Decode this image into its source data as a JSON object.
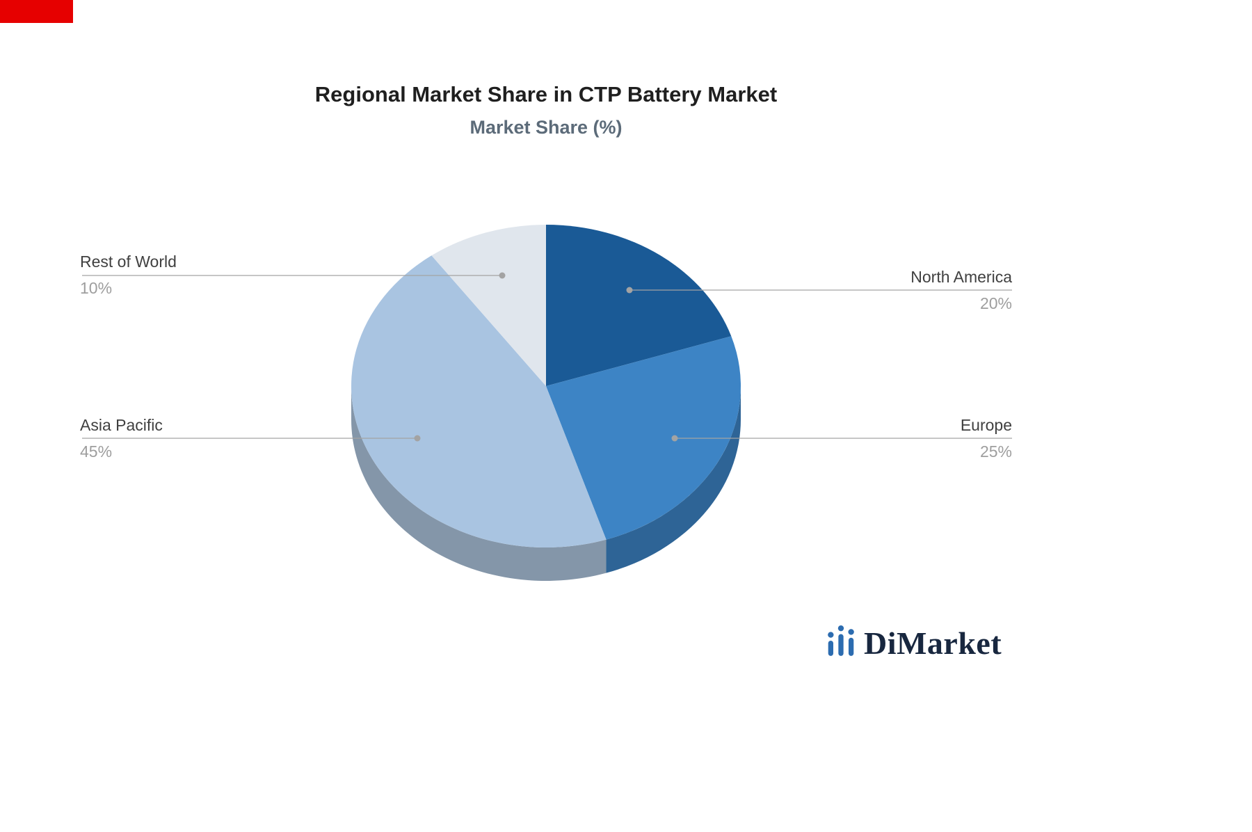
{
  "badge": {
    "color": "#e60000"
  },
  "chart_data": {
    "type": "pie",
    "title": "Regional Market Share in CTP Battery Market",
    "subtitle": "Market Share (%)",
    "unit": "%",
    "start_angle_deg": -90,
    "direction": "clockwise",
    "style": "3d-pie",
    "legend_position": "none",
    "slices": [
      {
        "label": "North America",
        "value": 20,
        "pct_label": "20%",
        "color": "#1a5a96",
        "side_color": "#134570"
      },
      {
        "label": "Europe",
        "value": 25,
        "pct_label": "25%",
        "color": "#3d84c5",
        "side_color": "#2e6496"
      },
      {
        "label": "Asia Pacific",
        "value": 45,
        "pct_label": "45%",
        "color": "#a9c4e1",
        "side_color": "#8496a9"
      },
      {
        "label": "Rest of World",
        "value": 10,
        "pct_label": "10%",
        "color": "#e0e6ed",
        "side_color": "#a8adb4"
      }
    ],
    "label_name_color": "#404040",
    "label_pct_color": "#9e9e9e",
    "leader_line_color": "#a3a3a3"
  },
  "logo": {
    "text": "DiMarket",
    "text_color": "#18273f",
    "icon": "bar-chart-icon",
    "icon_color": "#2c6cb0"
  }
}
